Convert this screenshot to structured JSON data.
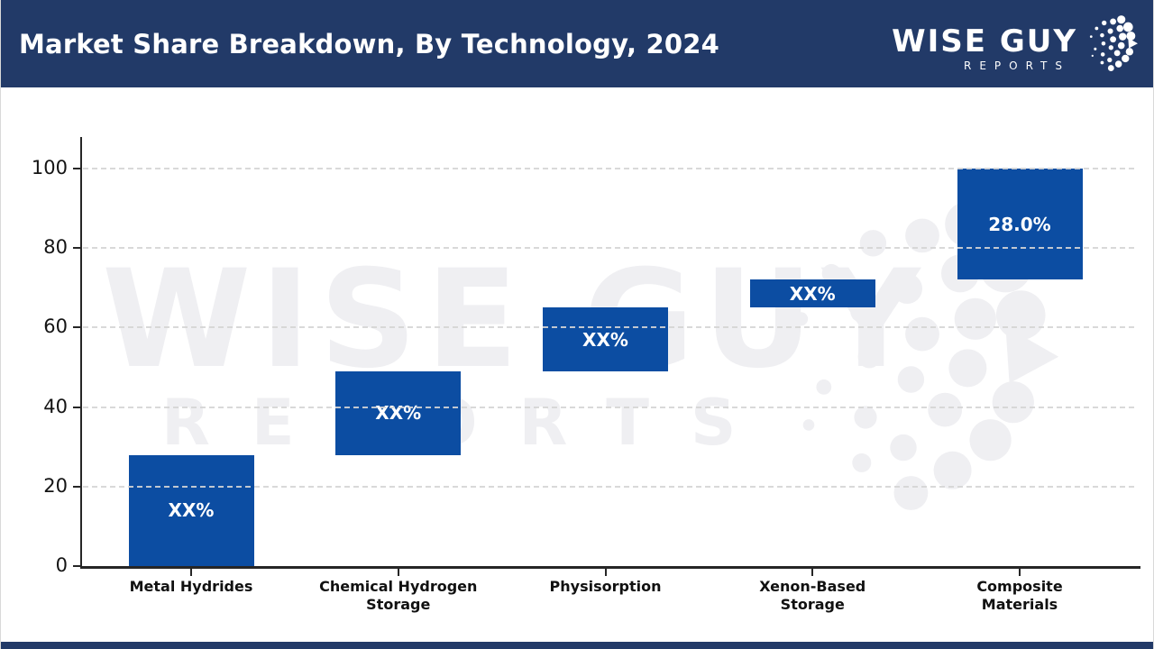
{
  "header": {
    "title": "Market Share Breakdown, By Technology, 2024",
    "brand": {
      "name": "WISE GUY",
      "sub": "REPORTS"
    }
  },
  "watermark": {
    "line1": "WISE GUY",
    "line2": "REPORTS"
  },
  "theme": {
    "navy": "#223A68",
    "bar_blue": "#0C4DA2",
    "watermark_gray": "#EFEFF2",
    "grid_gray": "#D5D5D5",
    "axis_color": "#262626"
  },
  "chart_data": {
    "type": "bar",
    "subtype": "waterfall",
    "title": "Market Share Breakdown, By Technology, 2024",
    "categories": [
      "Metal Hydrides",
      "Chemical Hydrogen Storage",
      "Physisorption",
      "Xenon-Based Storage",
      "Composite Materials"
    ],
    "label_lines": [
      [
        "Metal Hydrides"
      ],
      [
        "Chemical Hydrogen",
        "Storage"
      ],
      [
        "Physisorption"
      ],
      [
        "Xenon-Based",
        "Storage"
      ],
      [
        "Composite",
        "Materials"
      ]
    ],
    "segments": [
      {
        "category": "Metal Hydrides",
        "start": 0,
        "end": 28,
        "value": 28,
        "label": "XX%"
      },
      {
        "category": "Chemical Hydrogen Storage",
        "start": 28,
        "end": 49,
        "value": 21,
        "label": "XX%"
      },
      {
        "category": "Physisorption",
        "start": 49,
        "end": 65,
        "value": 16,
        "label": "XX%"
      },
      {
        "category": "Xenon-Based Storage",
        "start": 65,
        "end": 72,
        "value": 7,
        "label": "XX%"
      },
      {
        "category": "Composite Materials",
        "start": 72,
        "end": 100,
        "value": 28,
        "label": "28.0%"
      }
    ],
    "yticks": [
      0,
      20,
      40,
      60,
      80,
      100
    ],
    "ylim": [
      0,
      100
    ],
    "xlabel": "",
    "ylabel": "",
    "grid": "dashed horizontal gridlines at yticks",
    "legend": "none",
    "bar_color": "#0C4DA2",
    "bar_label_color": "#ffffff"
  }
}
